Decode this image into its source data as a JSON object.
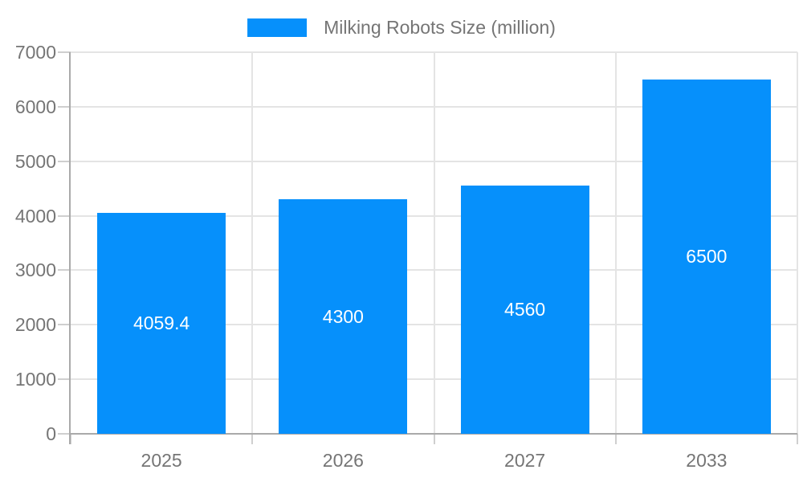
{
  "legend": {
    "label": "Milking Robots Size (million)"
  },
  "chart_data": {
    "type": "bar",
    "title": "Milking Robots Size (million)",
    "categories": [
      "2025",
      "2026",
      "2027",
      "2033"
    ],
    "values": [
      4059.4,
      4300,
      4560,
      6500
    ],
    "value_labels": [
      "4059.4",
      "4300",
      "4560",
      "6500"
    ],
    "series": [
      {
        "name": "Milking Robots Size (million)",
        "values": [
          4059.4,
          4300,
          4560,
          6500
        ]
      }
    ],
    "xlabel": "",
    "ylabel": "",
    "ylim": [
      0,
      7000
    ],
    "yticks": [
      0,
      1000,
      2000,
      3000,
      4000,
      5000,
      6000,
      7000
    ],
    "grid": true,
    "legend_position": "top",
    "value_labels_position": "inside-center"
  },
  "colors": {
    "bar": "#0690FB",
    "grid": "#E4E4E4",
    "axis": "#AAAAAA",
    "tick": "#CFCFCF",
    "text": "#757575",
    "value_text": "#FFFFFF",
    "background": "#FFFFFF"
  }
}
